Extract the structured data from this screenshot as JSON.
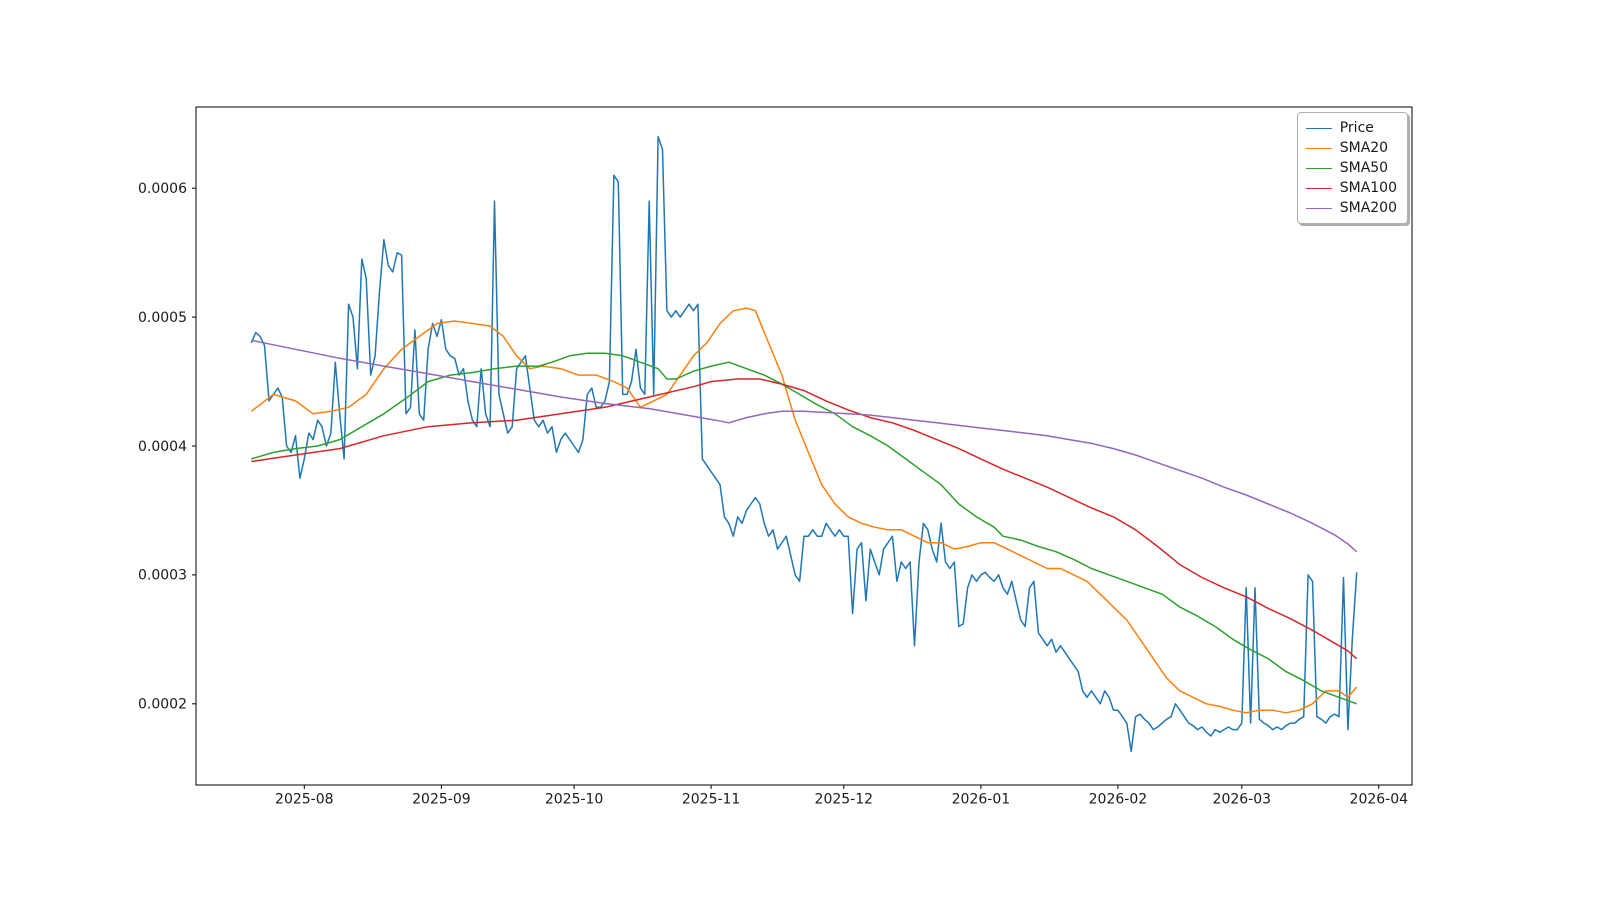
{
  "figure": {
    "background": "#ffffff"
  },
  "chart_data": {
    "type": "line",
    "title": "",
    "xlabel": "",
    "ylabel": "",
    "x_unit": "days since 2025-07-20",
    "xlim": [
      -12.5,
      262.5
    ],
    "ylim": [
      0.000137,
      0.000663
    ],
    "grid": false,
    "legend_position": "upper right",
    "xticks": {
      "positions": [
        12,
        43,
        73,
        104,
        134,
        165,
        196,
        224,
        255
      ],
      "labels": [
        "2025-08",
        "2025-09",
        "2025-10",
        "2025-11",
        "2025-12",
        "2026-01",
        "2026-02",
        "2026-03",
        "2026-04"
      ]
    },
    "yticks": {
      "values": [
        0.0002,
        0.0003,
        0.0004,
        0.0005,
        0.0006
      ],
      "labels": [
        "0.0002",
        "0.0003",
        "0.0004",
        "0.0005",
        "0.0006"
      ]
    },
    "series": [
      {
        "name": "Price",
        "color": "#1f77b4",
        "x_start": 0,
        "x_step": 1,
        "y": [
          0.00048,
          0.000488,
          0.000485,
          0.000478,
          0.000435,
          0.00044,
          0.000445,
          0.000438,
          0.0004,
          0.000395,
          0.000408,
          0.000375,
          0.00039,
          0.00041,
          0.000405,
          0.00042,
          0.000415,
          0.0004,
          0.00041,
          0.000465,
          0.000425,
          0.00039,
          0.00051,
          0.0005,
          0.00046,
          0.000545,
          0.00053,
          0.000455,
          0.00047,
          0.00052,
          0.00056,
          0.00054,
          0.000535,
          0.00055,
          0.000548,
          0.000425,
          0.00043,
          0.00049,
          0.000425,
          0.00042,
          0.000475,
          0.000495,
          0.000485,
          0.000498,
          0.000475,
          0.00047,
          0.000468,
          0.000455,
          0.00046,
          0.000435,
          0.00042,
          0.000415,
          0.00046,
          0.000425,
          0.000415,
          0.00059,
          0.00044,
          0.000425,
          0.00041,
          0.000415,
          0.00046,
          0.000465,
          0.00047,
          0.000445,
          0.00042,
          0.000415,
          0.00042,
          0.00041,
          0.000415,
          0.000395,
          0.000405,
          0.00041,
          0.000405,
          0.0004,
          0.000395,
          0.000405,
          0.00044,
          0.000445,
          0.00043,
          0.00043,
          0.000435,
          0.00045,
          0.00061,
          0.000605,
          0.00044,
          0.00044,
          0.00045,
          0.000475,
          0.000445,
          0.00044,
          0.00059,
          0.00044,
          0.00064,
          0.00063,
          0.000505,
          0.0005,
          0.000505,
          0.0005,
          0.000505,
          0.00051,
          0.000505,
          0.00051,
          0.00039,
          0.000385,
          0.00038,
          0.000375,
          0.00037,
          0.000345,
          0.00034,
          0.00033,
          0.000345,
          0.00034,
          0.00035,
          0.000355,
          0.00036,
          0.000355,
          0.00034,
          0.00033,
          0.000335,
          0.00032,
          0.000325,
          0.00033,
          0.000315,
          0.0003,
          0.000295,
          0.00033,
          0.00033,
          0.000335,
          0.00033,
          0.00033,
          0.00034,
          0.000335,
          0.00033,
          0.000335,
          0.00033,
          0.00033,
          0.00027,
          0.00032,
          0.000325,
          0.00028,
          0.00032,
          0.00031,
          0.0003,
          0.00032,
          0.000325,
          0.00033,
          0.000295,
          0.00031,
          0.000305,
          0.00031,
          0.000245,
          0.00031,
          0.00034,
          0.000335,
          0.00032,
          0.00031,
          0.00034,
          0.00031,
          0.000305,
          0.00031,
          0.00026,
          0.000262,
          0.00029,
          0.0003,
          0.000295,
          0.0003,
          0.000302,
          0.000298,
          0.000295,
          0.0003,
          0.00029,
          0.000285,
          0.000295,
          0.00028,
          0.000265,
          0.00026,
          0.00029,
          0.000295,
          0.000255,
          0.00025,
          0.000245,
          0.00025,
          0.00024,
          0.000245,
          0.00024,
          0.000235,
          0.00023,
          0.000225,
          0.00021,
          0.000205,
          0.00021,
          0.000205,
          0.0002,
          0.00021,
          0.000205,
          0.000195,
          0.000195,
          0.00019,
          0.000185,
          0.000163,
          0.00019,
          0.000192,
          0.000188,
          0.000185,
          0.00018,
          0.000182,
          0.000185,
          0.000188,
          0.00019,
          0.0002,
          0.000195,
          0.00019,
          0.000185,
          0.000183,
          0.00018,
          0.000182,
          0.000178,
          0.000175,
          0.00018,
          0.000178,
          0.00018,
          0.000182,
          0.00018,
          0.00018,
          0.000185,
          0.00029,
          0.000185,
          0.00029,
          0.000188,
          0.000185,
          0.000183,
          0.00018,
          0.000182,
          0.00018,
          0.000183,
          0.000185,
          0.000185,
          0.000188,
          0.00019,
          0.0003,
          0.000295,
          0.00019,
          0.000188,
          0.000185,
          0.00019,
          0.000192,
          0.00019,
          0.000298,
          0.00018,
          0.00025,
          0.000302
        ]
      },
      {
        "name": "SMA20",
        "color": "#ff7f0e",
        "x": [
          0,
          5,
          10,
          14,
          18,
          22,
          26,
          30,
          34,
          38,
          42,
          46,
          50,
          54,
          57,
          60,
          63,
          66,
          70,
          74,
          78,
          82,
          85,
          88,
          91,
          94,
          97,
          100,
          103,
          106,
          109,
          112,
          114,
          117,
          120,
          123,
          126,
          129,
          132,
          135,
          138,
          141,
          144,
          147,
          150,
          153,
          156,
          159,
          162,
          165,
          168,
          171,
          174,
          177,
          180,
          183,
          186,
          189,
          192,
          195,
          198,
          201,
          204,
          207,
          210,
          213,
          216,
          219,
          222,
          225,
          228,
          231,
          234,
          237,
          240,
          243,
          246,
          248,
          250
        ],
        "y": [
          0.000427,
          0.00044,
          0.000435,
          0.000425,
          0.000427,
          0.00043,
          0.00044,
          0.00046,
          0.000475,
          0.000485,
          0.000495,
          0.000497,
          0.000495,
          0.000493,
          0.000485,
          0.00047,
          0.00046,
          0.000462,
          0.00046,
          0.000455,
          0.000455,
          0.00045,
          0.000445,
          0.00043,
          0.000435,
          0.00044,
          0.000455,
          0.00047,
          0.00048,
          0.000495,
          0.000505,
          0.000507,
          0.000505,
          0.00048,
          0.000455,
          0.00042,
          0.000395,
          0.00037,
          0.000355,
          0.000345,
          0.00034,
          0.000337,
          0.000335,
          0.000335,
          0.00033,
          0.000325,
          0.000325,
          0.00032,
          0.000322,
          0.000325,
          0.000325,
          0.00032,
          0.000315,
          0.00031,
          0.000305,
          0.000305,
          0.0003,
          0.000295,
          0.000285,
          0.000275,
          0.000265,
          0.00025,
          0.000235,
          0.00022,
          0.00021,
          0.000205,
          0.0002,
          0.000198,
          0.000195,
          0.000193,
          0.000195,
          0.000195,
          0.000193,
          0.000195,
          0.0002,
          0.00021,
          0.00021,
          0.000205,
          0.000213
        ]
      },
      {
        "name": "SMA50",
        "color": "#2ca02c",
        "x": [
          0,
          5,
          10,
          15,
          20,
          25,
          30,
          35,
          40,
          45,
          50,
          55,
          60,
          65,
          68,
          72,
          76,
          80,
          84,
          88,
          92,
          94,
          96,
          100,
          104,
          108,
          112,
          116,
          120,
          124,
          128,
          132,
          136,
          140,
          144,
          148,
          152,
          156,
          160,
          164,
          168,
          170,
          174,
          178,
          182,
          186,
          190,
          194,
          198,
          202,
          206,
          210,
          214,
          218,
          222,
          226,
          230,
          234,
          238,
          242,
          246,
          250
        ],
        "y": [
          0.00039,
          0.000395,
          0.000398,
          0.0004,
          0.000405,
          0.000415,
          0.000425,
          0.000437,
          0.00045,
          0.000455,
          0.000457,
          0.00046,
          0.000462,
          0.000462,
          0.000465,
          0.00047,
          0.000472,
          0.000472,
          0.00047,
          0.000465,
          0.00046,
          0.000452,
          0.000452,
          0.000458,
          0.000462,
          0.000465,
          0.00046,
          0.000455,
          0.000448,
          0.00044,
          0.000432,
          0.000425,
          0.000415,
          0.000408,
          0.0004,
          0.00039,
          0.00038,
          0.00037,
          0.000355,
          0.000345,
          0.000337,
          0.00033,
          0.000327,
          0.000322,
          0.000318,
          0.000312,
          0.000305,
          0.0003,
          0.000295,
          0.00029,
          0.000285,
          0.000275,
          0.000268,
          0.00026,
          0.00025,
          0.000242,
          0.000235,
          0.000225,
          0.000218,
          0.00021,
          0.000205,
          0.0002
        ]
      },
      {
        "name": "SMA100",
        "color": "#d62728",
        "x": [
          0,
          10,
          20,
          30,
          40,
          50,
          60,
          70,
          80,
          90,
          100,
          104,
          110,
          115,
          120,
          125,
          130,
          135,
          140,
          145,
          150,
          155,
          160,
          165,
          170,
          175,
          180,
          185,
          190,
          195,
          200,
          205,
          210,
          215,
          220,
          225,
          230,
          235,
          240,
          245,
          248,
          250
        ],
        "y": [
          0.000388,
          0.000393,
          0.000398,
          0.000408,
          0.000415,
          0.000418,
          0.00042,
          0.000425,
          0.00043,
          0.000438,
          0.000446,
          0.00045,
          0.000452,
          0.000452,
          0.000448,
          0.000443,
          0.000435,
          0.000428,
          0.000422,
          0.000418,
          0.000412,
          0.000405,
          0.000398,
          0.00039,
          0.000382,
          0.000375,
          0.000368,
          0.00036,
          0.000352,
          0.000345,
          0.000335,
          0.000322,
          0.000308,
          0.000298,
          0.00029,
          0.000283,
          0.000274,
          0.000266,
          0.000257,
          0.000247,
          0.000241,
          0.000235
        ]
      },
      {
        "name": "SMA200",
        "color": "#9467bd",
        "x": [
          0,
          10,
          20,
          30,
          40,
          50,
          60,
          70,
          80,
          90,
          95,
          100,
          105,
          108,
          112,
          116,
          120,
          125,
          130,
          135,
          140,
          145,
          150,
          155,
          160,
          165,
          170,
          175,
          180,
          185,
          190,
          195,
          200,
          205,
          210,
          215,
          220,
          225,
          230,
          235,
          240,
          245,
          248,
          250
        ],
        "y": [
          0.000482,
          0.000475,
          0.000468,
          0.000462,
          0.000456,
          0.00045,
          0.000444,
          0.000438,
          0.000433,
          0.000429,
          0.000426,
          0.000423,
          0.00042,
          0.000418,
          0.000422,
          0.000425,
          0.000427,
          0.000427,
          0.000426,
          0.000425,
          0.000424,
          0.000422,
          0.00042,
          0.000418,
          0.000416,
          0.000414,
          0.000412,
          0.00041,
          0.000408,
          0.000405,
          0.000402,
          0.000398,
          0.000393,
          0.000387,
          0.000381,
          0.000375,
          0.000368,
          0.000362,
          0.000355,
          0.000348,
          0.00034,
          0.000331,
          0.000324,
          0.000318
        ]
      }
    ]
  }
}
